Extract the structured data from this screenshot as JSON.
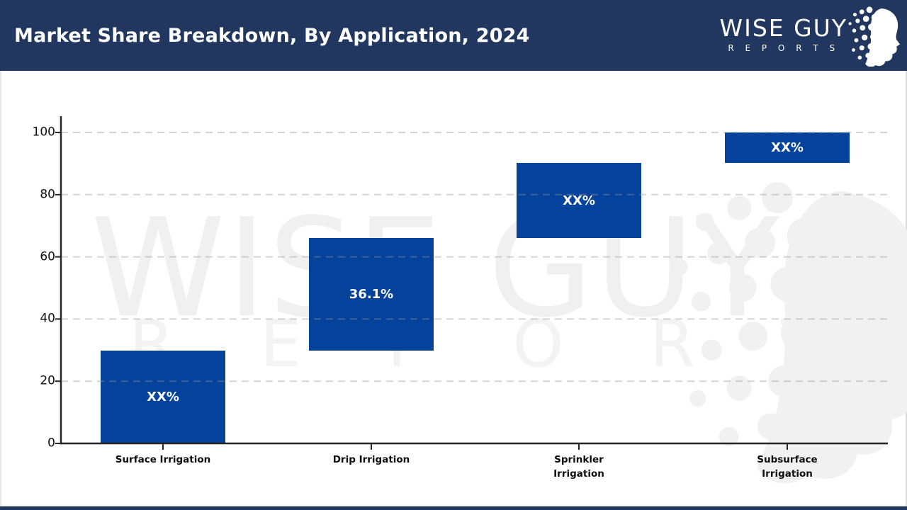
{
  "header": {
    "title": "Market Share Breakdown, By Application, 2024",
    "logo": {
      "name": "WISE GUY",
      "subtitle": "R E P O R T S"
    }
  },
  "watermark": {
    "line1": "WISE GUY",
    "line2": "R E P O R T S"
  },
  "chart_data": {
    "type": "bar",
    "subtype": "floating-segment-waterfall",
    "title": "Market Share Breakdown, By Application, 2024",
    "categories": [
      "Surface Irrigation",
      "Drip Irrigation",
      "Sprinkler\nIrrigation",
      "Subsurface\nIrrigation"
    ],
    "values": [
      29.9,
      36.1,
      24.2,
      9.8
    ],
    "starts": [
      0,
      29.9,
      66.0,
      90.2
    ],
    "ends": [
      29.9,
      66.0,
      90.2,
      100
    ],
    "bar_labels": [
      "XX%",
      "36.1%",
      "XX%",
      "XX%"
    ],
    "ylim": [
      0,
      100
    ],
    "yticks": [
      0,
      20,
      40,
      60,
      80,
      100
    ],
    "xlabel": "",
    "ylabel": "",
    "grid": "horizontal-dashed",
    "legend": "none",
    "bar_color": "#05429B",
    "bar_label_color": "#ffffff",
    "axis_color": "#262626",
    "tick_label_color": "#111111",
    "gridline_color": "rgba(150,150,150,0.4)"
  },
  "colors": {
    "header_bg": "#223760",
    "footer_bg": "#223760",
    "canvas_bg": "#ffffff",
    "watermark": "#f0f0f0"
  }
}
